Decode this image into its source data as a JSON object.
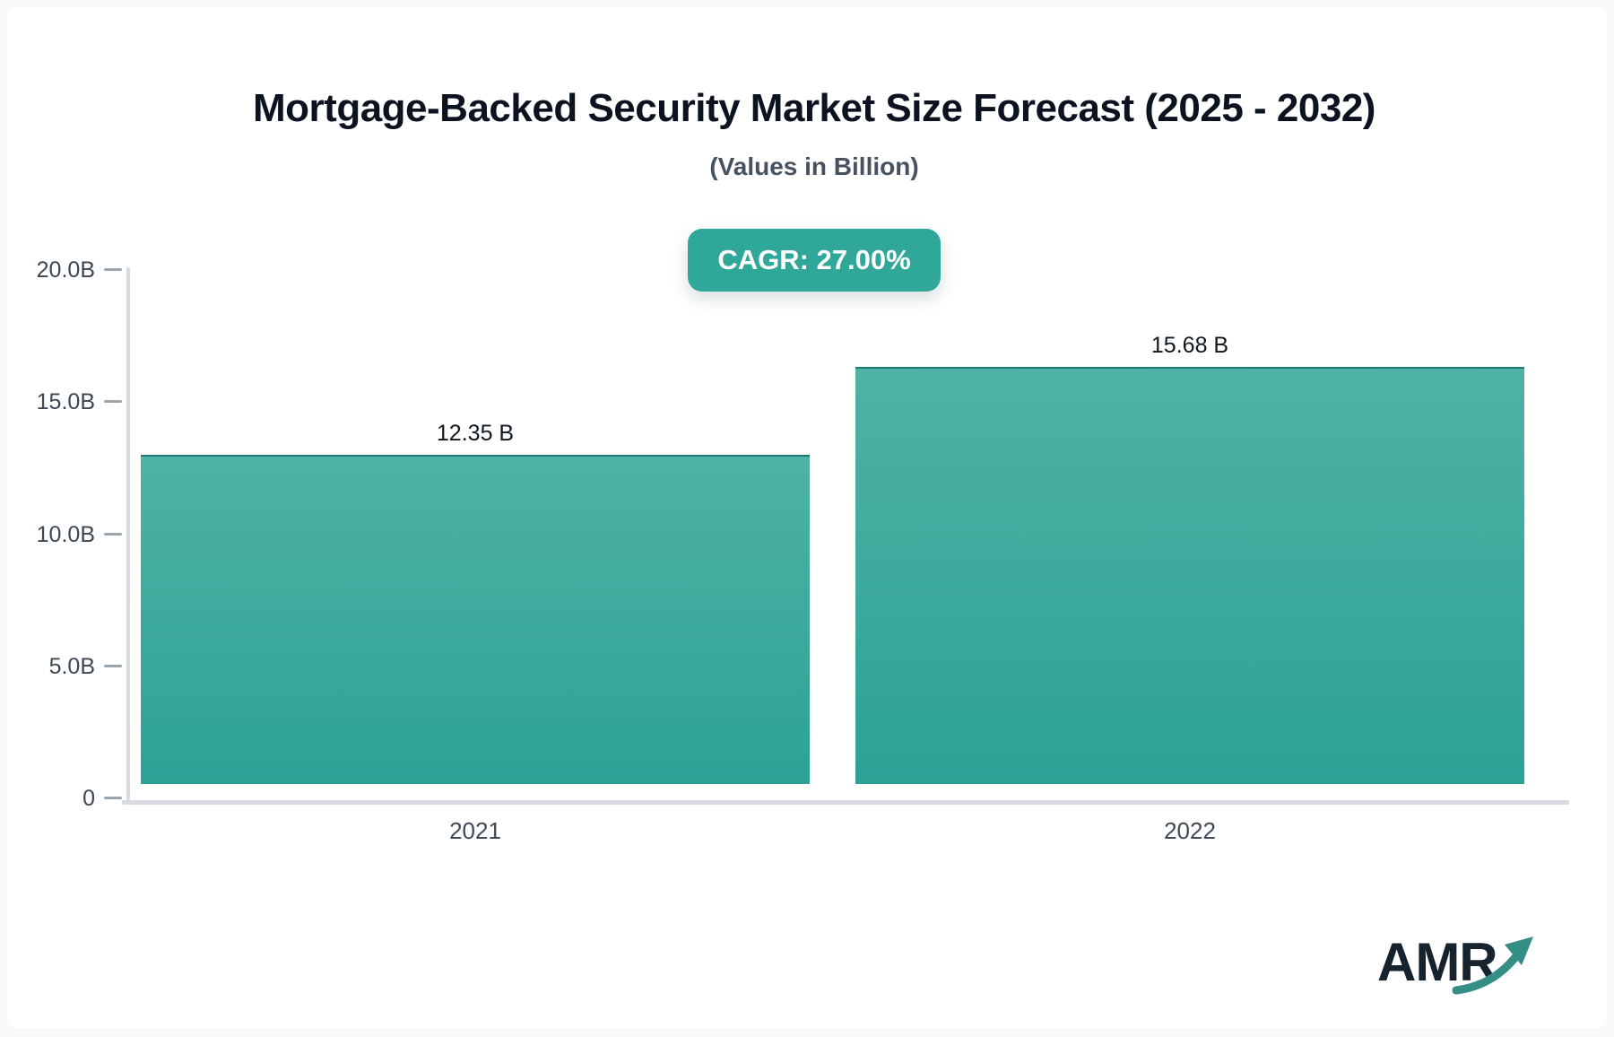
{
  "page": {
    "background": "#f7f9fb",
    "card_background": "#ffffff"
  },
  "header": {
    "title": "Mortgage-Backed Security Market Size Forecast (2025 - 2032)",
    "subtitle": "(Values in Billion)",
    "cagr_badge": "CAGR: 27.00%"
  },
  "branding": {
    "logo_text": "AMR",
    "logo_arrow_icon": "trend-up-arrow"
  },
  "colors": {
    "accent_teal": "#2fa89a",
    "bar_gradient_top": "#4fb2a5",
    "bar_gradient_bottom": "#2ba295",
    "bar_top_border": "#1e7a73",
    "axis_line": "#d7dbe0",
    "tick_dash": "#9aa4ad",
    "axis_text": "#3c4754",
    "title_text": "#0b1320",
    "subtitle_text": "#475260",
    "value_label_text": "#10181f",
    "logo_text_color": "#16222e",
    "logo_arrow_color": "#338f86"
  },
  "chart_data": {
    "type": "bar",
    "title": "Mortgage-Backed Security Market Size Forecast (2025 - 2032)",
    "subtitle": "(Values in Billion)",
    "annotation": "CAGR: 27.00%",
    "categories": [
      "2021",
      "2022"
    ],
    "values": [
      12.35,
      15.68
    ],
    "value_labels": [
      "12.35 B",
      "15.68 B"
    ],
    "unit": "Billion",
    "ylim": [
      0,
      20
    ],
    "yticks": [
      "20.0B",
      "15.0B",
      "10.0B",
      "5.0B",
      "0"
    ],
    "grid": false,
    "legend": false,
    "bar_orientation": "vertical"
  }
}
